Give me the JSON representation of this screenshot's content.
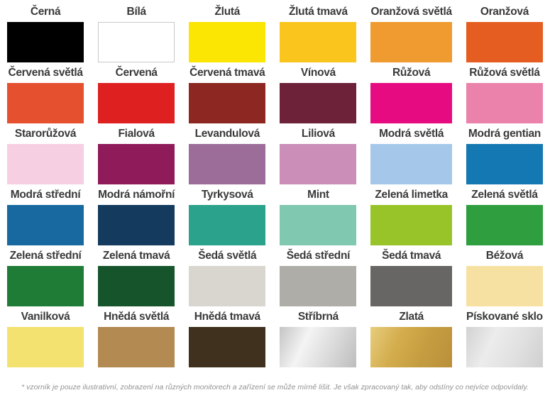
{
  "palette": {
    "label_color": "#3a3a3a",
    "white_swatch_border_color": "#c9c9c9",
    "gradient_angle_deg": 115,
    "swatches": [
      {
        "label": "Černá",
        "color": "#000000"
      },
      {
        "label": "Bílá",
        "color": "#ffffff",
        "bordered": true
      },
      {
        "label": "Žlutá",
        "color": "#fbe503"
      },
      {
        "label": "Žlutá tmavá",
        "color": "#fac51d"
      },
      {
        "label": "Oranžová světlá",
        "color": "#ef9b2f"
      },
      {
        "label": "Oranžová",
        "color": "#e55d20"
      },
      {
        "label": "Červená světlá",
        "color": "#e5502f"
      },
      {
        "label": "Červená",
        "color": "#de2020"
      },
      {
        "label": "Červená tmavá",
        "color": "#8c2722"
      },
      {
        "label": "Vínová",
        "color": "#6e2239"
      },
      {
        "label": "Růžová",
        "color": "#e60b80"
      },
      {
        "label": "Růžová světlá",
        "color": "#ea82ab"
      },
      {
        "label": "Starorůžová",
        "color": "#f6cfe3"
      },
      {
        "label": "Fialová",
        "color": "#8f1b5b"
      },
      {
        "label": "Levandulová",
        "color": "#9c6d99"
      },
      {
        "label": "Liliová",
        "color": "#ca8eb8"
      },
      {
        "label": "Modrá světlá",
        "color": "#a5c8ea"
      },
      {
        "label": "Modrá gentian",
        "color": "#1478b2"
      },
      {
        "label": "Modrá střední",
        "color": "#17699f"
      },
      {
        "label": "Modrá námořní",
        "color": "#143a5e"
      },
      {
        "label": "Tyrkysová",
        "color": "#2ba28c"
      },
      {
        "label": "Mint",
        "color": "#81c8b1"
      },
      {
        "label": "Zelená limetka",
        "color": "#98c429"
      },
      {
        "label": "Zelená světlá",
        "color": "#2e9e3f"
      },
      {
        "label": "Zelená střední",
        "color": "#1f7c36"
      },
      {
        "label": "Zelená tmavá",
        "color": "#16552c"
      },
      {
        "label": "Šedá světlá",
        "color": "#d8d6ce"
      },
      {
        "label": "Šedá střední",
        "color": "#afada8"
      },
      {
        "label": "Šedá tmavá",
        "color": "#686664"
      },
      {
        "label": "Béžová",
        "color": "#f7e1a2"
      },
      {
        "label": "Vanilková",
        "color": "#f4e270"
      },
      {
        "label": "Hnědá světlá",
        "color": "#b28a52"
      },
      {
        "label": "Hnědá tmavá",
        "color": "#3f311d"
      },
      {
        "label": "Stříbrná",
        "gradient": [
          "#c4c4c4",
          "#f4f4f4",
          "#d9d9d9",
          "#bdbdbd"
        ]
      },
      {
        "label": "Zlatá",
        "gradient": [
          "#e7cd7d",
          "#d4ad4d",
          "#c49c40",
          "#b9903a"
        ]
      },
      {
        "label": "Pískované sklo",
        "gradient": [
          "#d2d2d2",
          "#ececec",
          "#e0e0e0",
          "#cfcfcf"
        ]
      }
    ]
  },
  "footer": {
    "note": "* vzorník je pouze ilustrativní, zobrazení na různých monitorech a zařízení se může mírně lišit. Je však zpracovaný tak, aby odstíny co nejvíce odpovídaly."
  }
}
